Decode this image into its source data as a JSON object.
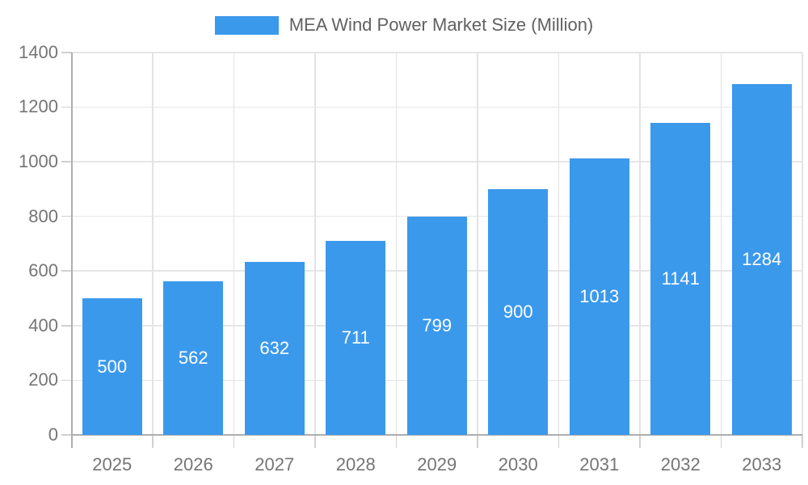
{
  "chart_data": {
    "type": "bar",
    "title": "MEA Wind Power Market Size (Million)",
    "categories": [
      "2025",
      "2026",
      "2027",
      "2028",
      "2029",
      "2030",
      "2031",
      "2032",
      "2033"
    ],
    "values": [
      500,
      562,
      632,
      711,
      799,
      900,
      1013,
      1141,
      1284
    ],
    "series": [
      {
        "name": "MEA Wind Power Market Size (Million)",
        "values": [
          500,
          562,
          632,
          711,
          799,
          900,
          1013,
          1141,
          1284
        ]
      }
    ],
    "xlabel": "",
    "ylabel": "",
    "ylim": [
      0,
      1400
    ],
    "y_ticks": [
      0,
      200,
      400,
      600,
      800,
      1000,
      1200,
      1400
    ],
    "grid": "on",
    "legend_position": "top-center",
    "value_labels": "inside-center-white",
    "colors": {
      "bar": "#3b99ec",
      "value_label": "#ffffff",
      "axis_text": "#757575",
      "title_text": "#616161",
      "gridline": "#e6e6e6",
      "axis_line": "#aeaeae",
      "background": "#ffffff"
    }
  }
}
